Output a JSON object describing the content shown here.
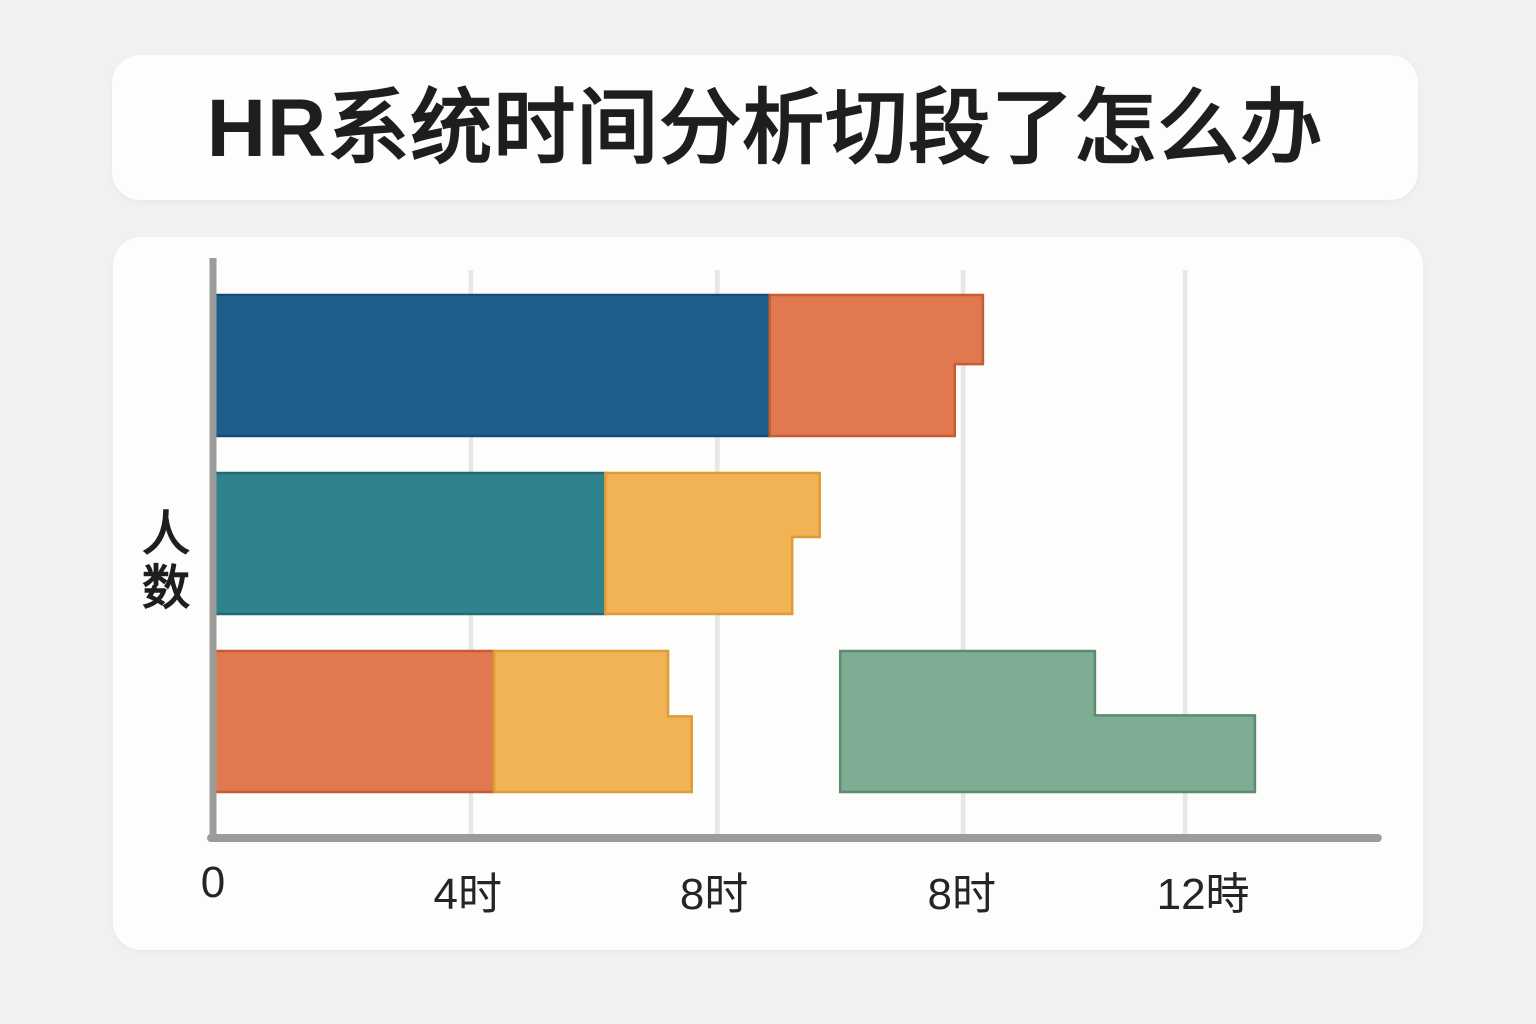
{
  "page": {
    "background_color": "#f1f1ef",
    "card_color": "#fdfdfc"
  },
  "title": {
    "text": "HR系统时间分析切段了怎么办",
    "color": "#1e1e1e"
  },
  "chart_data": {
    "type": "bar",
    "orientation": "horizontal",
    "title": "HR系统时间分析切段了怎么办",
    "xlabel": "",
    "ylabel": "人数",
    "grid": true,
    "legend": false,
    "axis_color": "#9b9b99",
    "gridline_color": "#e7e7e5",
    "tick_text_color": "#252525",
    "x_axis_ticks": [
      {
        "label": "0",
        "pos_h": 0
      },
      {
        "label": "4时",
        "pos_h": 3.98
      },
      {
        "label": "8时",
        "pos_h": 7.83
      },
      {
        "label": "8时",
        "pos_h": 11.7
      },
      {
        "label": "12時",
        "pos_h": 15.47
      }
    ],
    "gridlines_h": [
      4.03,
      7.88,
      11.72,
      15.19
    ],
    "x_axis_end_h": 18.2,
    "rows": [
      {
        "name": "bar-top",
        "segments": [
          {
            "label": "segment-blue",
            "color": "#1e5e8c",
            "stroke": "#174b72",
            "start_h": 0,
            "end_top_h": 8.7,
            "end_bottom_h": 8.7,
            "step_frac": 0
          },
          {
            "label": "segment-orange",
            "color": "#e0794f",
            "stroke": "#c95a31",
            "start_h": 8.7,
            "end_top_h": 12.03,
            "end_bottom_h": 11.59,
            "step_frac": 0.49
          }
        ]
      },
      {
        "name": "bar-middle",
        "segments": [
          {
            "label": "segment-teal",
            "color": "#2f838d",
            "stroke": "#246a75",
            "start_h": 0,
            "end_top_h": 6.13,
            "end_bottom_h": 6.13,
            "step_frac": 0
          },
          {
            "label": "segment-yellow",
            "color": "#f2b354",
            "stroke": "#dd9c38",
            "start_h": 6.13,
            "end_top_h": 9.48,
            "end_bottom_h": 9.05,
            "step_frac": 0.454
          }
        ]
      },
      {
        "name": "bar-bottom",
        "segments": [
          {
            "label": "segment-orange",
            "color": "#e0794f",
            "stroke": "#c95a31",
            "start_h": 0,
            "end_top_h": 4.39,
            "end_bottom_h": 4.39,
            "step_frac": 0
          },
          {
            "label": "segment-yellow",
            "color": "#f2b354",
            "stroke": "#dd9c38",
            "start_h": 4.39,
            "end_top_h": 7.11,
            "end_bottom_h": 7.48,
            "step_frac": 0.464
          },
          {
            "label": "segment-green",
            "color": "#7fad93",
            "stroke": "#5d8a71",
            "start_h": 9.8,
            "end_top_h": 13.78,
            "end_bottom_h": 16.28,
            "step_frac": 0.457
          }
        ]
      }
    ]
  }
}
